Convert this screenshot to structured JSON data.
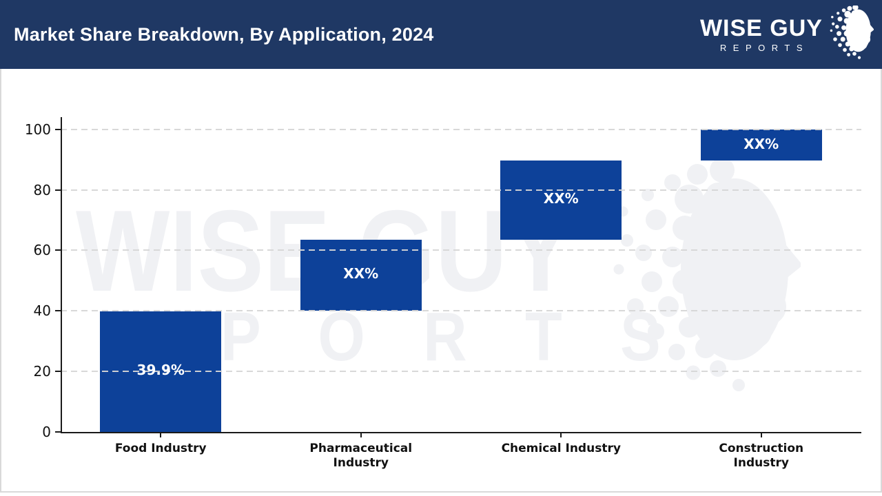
{
  "header": {
    "title": "Market Share Breakdown, By Application, 2024",
    "bg_color": "#1F3864",
    "logo": {
      "line1": "WISE GUY",
      "line2": "REPORTS"
    }
  },
  "watermark": {
    "line1": "WISE GUY",
    "line2": "P O R T S"
  },
  "chart_data": {
    "type": "bar",
    "subtype": "waterfall",
    "title": "Market Share Breakdown, By Application, 2024",
    "categories": [
      "Food Industry",
      "Pharmaceutical Industry",
      "Chemical Industry",
      "Construction Industry"
    ],
    "segments": [
      {
        "category": "Food Industry",
        "start": 0,
        "end": 39.9,
        "label": "39.9%"
      },
      {
        "category": "Pharmaceutical Industry",
        "start": 40,
        "end": 63.6,
        "label": "XX%"
      },
      {
        "category": "Chemical Industry",
        "start": 63.6,
        "end": 89.6,
        "label": "XX%"
      },
      {
        "category": "Construction Industry",
        "start": 89.6,
        "end": 100,
        "label": "XX%"
      }
    ],
    "ylim": [
      0,
      100
    ],
    "yticks": [
      0,
      20,
      40,
      60,
      80,
      100
    ],
    "xlabel": "",
    "ylabel": "",
    "grid": "horizontal-dashed",
    "legend": "none",
    "bar_color": "#0D4199",
    "bar_label_color": "#FFFFFF",
    "axis_color": "#1a1a1a"
  }
}
